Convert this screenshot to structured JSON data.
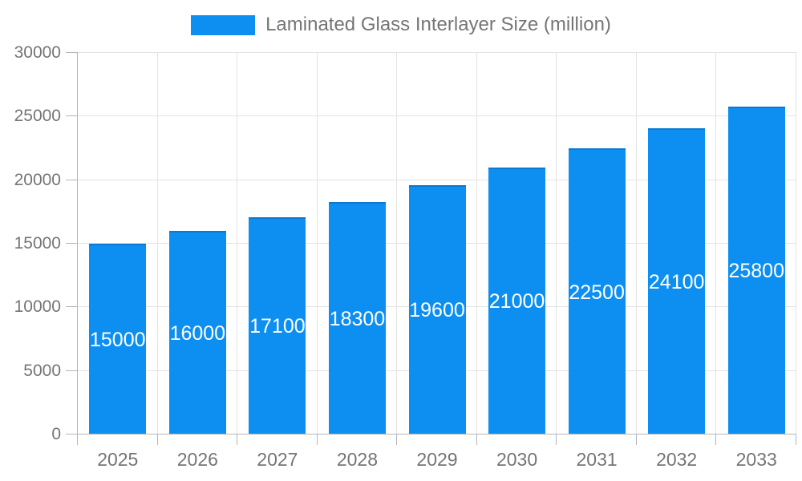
{
  "chart_data": {
    "type": "bar",
    "series_name": "Laminated Glass Interlayer Size (million)",
    "title": "Laminated Glass Interlayer Size (million)",
    "legend_position": "top-center",
    "categories": [
      "2025",
      "2026",
      "2027",
      "2028",
      "2029",
      "2030",
      "2031",
      "2032",
      "2033"
    ],
    "values": [
      15000,
      16000,
      17100,
      18300,
      19600,
      21000,
      22500,
      24100,
      25800
    ],
    "value_labels": [
      "15000",
      "16000",
      "17100",
      "18300",
      "19600",
      "21000",
      "22500",
      "24100",
      "25800"
    ],
    "value_label_position": "inside-center",
    "xlabel": "",
    "ylabel": "",
    "ylim": [
      0,
      30000
    ],
    "y_ticks": [
      0,
      5000,
      10000,
      15000,
      20000,
      25000,
      30000
    ],
    "y_tick_labels": [
      "0",
      "5000",
      "10000",
      "15000",
      "20000",
      "25000",
      "30000"
    ],
    "grid": true,
    "colors": {
      "bar_fill": "#0d8ff2",
      "bar_edge": "#0b79cf",
      "grid_line": "#e3e3e3",
      "axis_line": "#b5b5b5",
      "tick_label": "#757575",
      "value_label": "#ffffff",
      "background": "#ffffff"
    }
  }
}
